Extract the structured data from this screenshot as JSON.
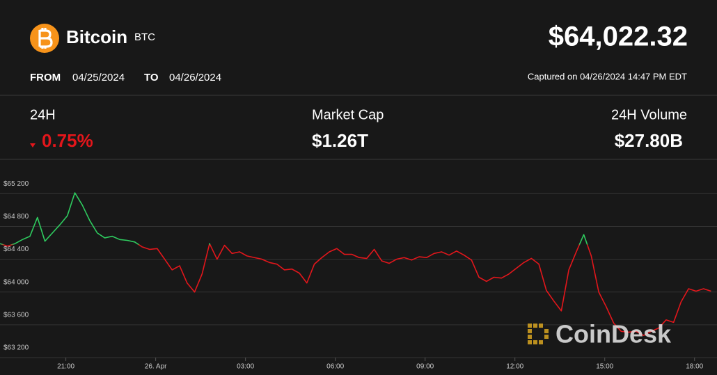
{
  "header": {
    "name": "Bitcoin",
    "symbol": "BTC",
    "price": "$64,022.32",
    "from_label": "FROM",
    "from_date": "04/25/2024",
    "to_label": "TO",
    "to_date": "04/26/2024",
    "captured": "Captured on 04/26/2024 14:47 PM EDT"
  },
  "stats": [
    {
      "label": "24H",
      "value": "0.75%"
    },
    {
      "label": "Market Cap",
      "value": "$1.26T"
    },
    {
      "label": "24H Volume",
      "value": "$27.80B"
    }
  ],
  "watermark": "CoinDesk",
  "chart_data": {
    "type": "line",
    "x": [
      18.8,
      19.05,
      19.3,
      19.55,
      19.8,
      20.05,
      20.3,
      20.55,
      20.8,
      21.05,
      21.3,
      21.55,
      21.8,
      22.05,
      22.3,
      22.55,
      22.8,
      23.05,
      23.3,
      23.55,
      23.8,
      24.05,
      24.3,
      24.55,
      24.8,
      25.05,
      25.3,
      25.55,
      25.8,
      26.05,
      26.3,
      26.55,
      26.8,
      27.05,
      27.3,
      27.55,
      27.8,
      28.05,
      28.3,
      28.55,
      28.8,
      29.05,
      29.3,
      29.55,
      29.8,
      30.05,
      30.3,
      30.55,
      30.8,
      31.05,
      31.3,
      31.55,
      31.8,
      32.05,
      32.3,
      32.55,
      32.8,
      33.05,
      33.3,
      33.55,
      33.8,
      34.05,
      34.3,
      34.55,
      34.8,
      35.05,
      35.3,
      35.55,
      35.8,
      36.05,
      36.3,
      36.55,
      36.8,
      37.05,
      37.3,
      37.55,
      37.8,
      38.05,
      38.3,
      38.55,
      38.8,
      39.05,
      39.3,
      39.55,
      39.8,
      40.05,
      40.3,
      40.55,
      40.8,
      41.05,
      41.3,
      41.55,
      41.8,
      42.05,
      42.3,
      42.55
    ],
    "series": [
      {
        "values": [
          64590,
          64560,
          64590,
          64640,
          64680,
          64910,
          64620,
          64720,
          64820,
          64930,
          65210,
          65060,
          64870,
          64720,
          64660,
          64680,
          64640,
          64630,
          64610,
          64550,
          64520,
          64530,
          64400,
          64270,
          64320,
          64110,
          64000,
          64220,
          64590,
          64400,
          64570,
          64470,
          64490,
          64440,
          64420,
          64400,
          64360,
          64340,
          64270,
          64280,
          64230,
          64110,
          64340,
          64420,
          64490,
          64530,
          64460,
          64460,
          64420,
          64410,
          64520,
          64380,
          64350,
          64400,
          64420,
          64390,
          64430,
          64420,
          64470,
          64490,
          64450,
          64500,
          64450,
          64390,
          64180,
          64130,
          64180,
          64170,
          64220,
          64290,
          64360,
          64410,
          64340,
          64020,
          63890,
          63770,
          64270,
          64490,
          64700,
          64440,
          64000,
          63820,
          63620,
          63520,
          63510,
          63520,
          63470,
          63520,
          63560,
          63660,
          63630,
          63880,
          64040,
          64010,
          64040,
          64010
        ]
      }
    ],
    "baseline": 64580,
    "up_color": "#2ecc5f",
    "down_color": "#e3161b",
    "xlim": [
      18.8,
      42.75
    ],
    "xticks": [
      {
        "value": 21,
        "label": "21:00"
      },
      {
        "value": 24,
        "label": "26. Apr"
      },
      {
        "value": 27,
        "label": "03:00"
      },
      {
        "value": 30,
        "label": "06:00"
      },
      {
        "value": 33,
        "label": "09:00"
      },
      {
        "value": 36,
        "label": "12:00"
      },
      {
        "value": 39,
        "label": "15:00"
      },
      {
        "value": 42,
        "label": "18:00"
      }
    ],
    "ylim": [
      63200,
      65610
    ],
    "yticks": [
      {
        "value": 63200,
        "label": "$63 200"
      },
      {
        "value": 63600,
        "label": "$63 600"
      },
      {
        "value": 64000,
        "label": "$64 000"
      },
      {
        "value": 64400,
        "label": "$64 400"
      },
      {
        "value": 64800,
        "label": "$64 800"
      },
      {
        "value": 65200,
        "label": "$65 200"
      }
    ],
    "grid": true
  }
}
